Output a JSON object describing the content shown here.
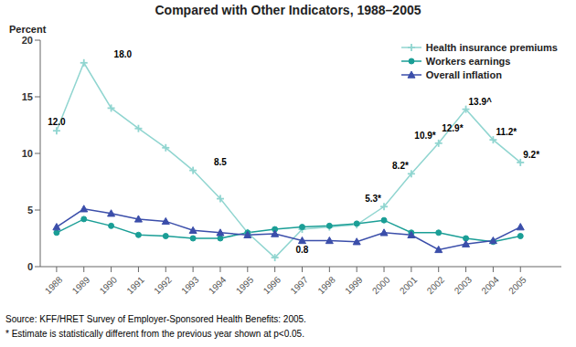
{
  "chart_data": {
    "type": "line",
    "title": "Compared with Other Indicators, 1988–2005",
    "y_label": "Percent",
    "source": "Source: KFF/HRET Survey of Employer-Sponsored Health Benefits: 2005.",
    "note": "* Estimate is statistically different from the previous year shown at p<0.05.",
    "x": [
      1988,
      1989,
      1990,
      1991,
      1992,
      1993,
      1994,
      1995,
      1996,
      1997,
      1998,
      1999,
      2000,
      2001,
      2002,
      2003,
      2004,
      2005
    ],
    "xlim": [
      1987.4,
      2006.5
    ],
    "xticks": [
      1988,
      1989,
      1990,
      1991,
      1992,
      1993,
      1994,
      1995,
      1996,
      1997,
      1998,
      1999,
      2000,
      2001,
      2002,
      2003,
      2004,
      2005
    ],
    "ylim": [
      0,
      20
    ],
    "yticks": [
      0,
      5,
      10,
      15,
      20
    ],
    "grid": false,
    "legend": "upper right",
    "series": [
      {
        "name": "Health insurance premiums",
        "color": "#90d5d0",
        "marker": "plus",
        "values": [
          12.0,
          18.0,
          14.0,
          12.2,
          10.5,
          8.5,
          6.0,
          3.0,
          0.8,
          3.3,
          3.5,
          3.7,
          5.3,
          8.2,
          10.9,
          13.9,
          11.2,
          9.2
        ]
      },
      {
        "name": "Workers earnings",
        "color": "#1a9e96",
        "marker": "circle",
        "values": [
          3.0,
          4.2,
          3.6,
          2.8,
          2.7,
          2.5,
          2.5,
          3.0,
          3.3,
          3.5,
          3.6,
          3.8,
          4.1,
          3.0,
          3.0,
          2.5,
          2.2,
          2.7
        ]
      },
      {
        "name": "Overall inflation",
        "color": "#3b4eaa",
        "marker": "triangle",
        "values": [
          3.5,
          5.1,
          4.7,
          4.2,
          4.0,
          3.2,
          3.0,
          2.8,
          2.9,
          2.3,
          2.3,
          2.2,
          3.0,
          2.8,
          1.5,
          2.0,
          2.3,
          3.5
        ]
      }
    ],
    "annotations": [
      {
        "text": "12.0",
        "x": 1988,
        "y": 12.0
      },
      {
        "text": "18.0",
        "x": 1990,
        "y": 18.0
      },
      {
        "text": "8.5",
        "x": 1994,
        "y": 8.5
      },
      {
        "text": "0.8",
        "x": 1997,
        "y": 0.8
      },
      {
        "text": "5.3*",
        "x": 2000,
        "y": 5.3
      },
      {
        "text": "8.2*",
        "x": 2001,
        "y": 8.2
      },
      {
        "text": "10.9*",
        "x": 2002,
        "y": 10.9
      },
      {
        "text": "13.9^",
        "x": 2003,
        "y": 13.9
      },
      {
        "text": "12.9*",
        "x": 2003,
        "y": 12.9
      },
      {
        "text": "11.2*",
        "x": 2004,
        "y": 11.2
      },
      {
        "text": "9.2*",
        "x": 2005,
        "y": 9.2
      }
    ]
  }
}
